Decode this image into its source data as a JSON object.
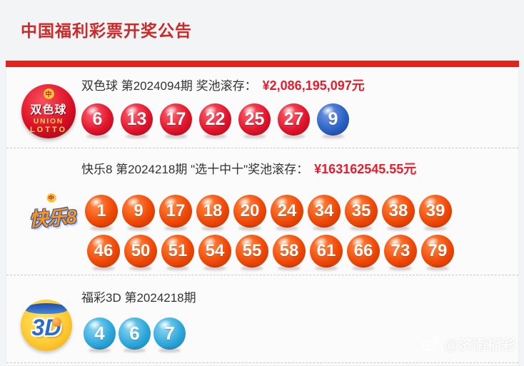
{
  "header": {
    "title": "中国福利彩票开奖公告"
  },
  "colors": {
    "accent_red": "#e3231a",
    "header_title_red": "#cc2a2a",
    "amount_red": "#ea1c2c",
    "ball_red": "#e2152b",
    "ball_blue": "#2a62c6",
    "ball_orange": "#f04806",
    "ball_cyan": "#2ea7da"
  },
  "watermark": {
    "label": "@济南福彩",
    "icon": "weibo-icon"
  },
  "sections": [
    {
      "id": "shuangseqiu",
      "logo": {
        "icon": "shuangseqiu-logo",
        "emblem": "中",
        "line1": "双色球",
        "line2": "UNION",
        "line3": "LOTTO"
      },
      "title": "双色球 第2024094期 奖池滚存：",
      "amount": "¥2,086,195,097元",
      "rows": [
        [
          {
            "n": "6",
            "c": "red"
          },
          {
            "n": "13",
            "c": "red"
          },
          {
            "n": "17",
            "c": "red"
          },
          {
            "n": "22",
            "c": "red"
          },
          {
            "n": "25",
            "c": "red"
          },
          {
            "n": "27",
            "c": "red"
          },
          {
            "n": "9",
            "c": "blue"
          }
        ]
      ]
    },
    {
      "id": "kuaile8",
      "logo": {
        "icon": "kuaile8-logo",
        "emblem": "中",
        "text": "快乐8"
      },
      "title": "快乐8 第2024218期 \"选十中十\"奖池滚存：",
      "amount": "¥163162545.55元",
      "rows": [
        [
          {
            "n": "1",
            "c": "orange"
          },
          {
            "n": "9",
            "c": "orange"
          },
          {
            "n": "17",
            "c": "orange"
          },
          {
            "n": "18",
            "c": "orange"
          },
          {
            "n": "20",
            "c": "orange"
          },
          {
            "n": "24",
            "c": "orange"
          },
          {
            "n": "34",
            "c": "orange"
          },
          {
            "n": "35",
            "c": "orange"
          },
          {
            "n": "38",
            "c": "orange"
          },
          {
            "n": "39",
            "c": "orange"
          }
        ],
        [
          {
            "n": "46",
            "c": "orange"
          },
          {
            "n": "50",
            "c": "orange"
          },
          {
            "n": "51",
            "c": "orange"
          },
          {
            "n": "54",
            "c": "orange"
          },
          {
            "n": "55",
            "c": "orange"
          },
          {
            "n": "58",
            "c": "orange"
          },
          {
            "n": "61",
            "c": "orange"
          },
          {
            "n": "66",
            "c": "orange"
          },
          {
            "n": "73",
            "c": "orange"
          },
          {
            "n": "79",
            "c": "orange"
          }
        ]
      ]
    },
    {
      "id": "fucai3d",
      "logo": {
        "icon": "fucai3d-logo",
        "emblem": "中",
        "text": "3D"
      },
      "title": "福彩3D 第2024218期",
      "rows": [
        [
          {
            "n": "4",
            "c": "cyan"
          },
          {
            "n": "6",
            "c": "cyan"
          },
          {
            "n": "7",
            "c": "cyan"
          }
        ]
      ]
    }
  ]
}
